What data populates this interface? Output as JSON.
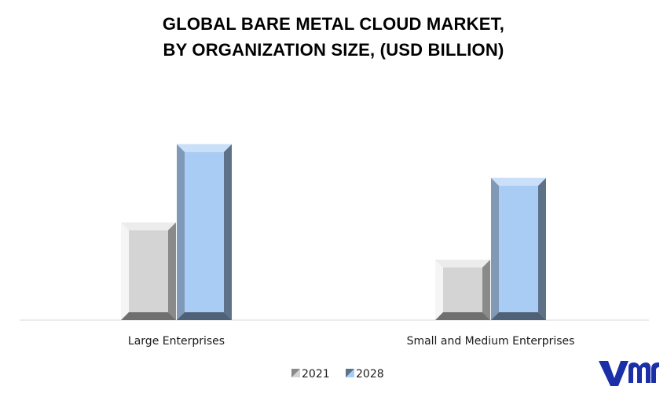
{
  "chart_data": {
    "type": "bar",
    "title_lines": [
      "GLOBAL BARE METAL CLOUD MARKET,",
      "BY ORGANIZATION SIZE, (USD BILLION)"
    ],
    "categories": [
      "Large Enterprises",
      "Small and Medium Enterprises"
    ],
    "series": [
      {
        "name": "2021",
        "values": [
          5.5,
          3.4
        ]
      },
      {
        "name": "2028",
        "values": [
          9.9,
          8.0
        ]
      }
    ],
    "ylim": [
      0,
      11
    ],
    "grid": false,
    "legend_position": "bottom",
    "colors": {
      "2021": "#c8c8c8",
      "2028": "#a8ccf3"
    },
    "logo_icon": "vmr-logo"
  }
}
